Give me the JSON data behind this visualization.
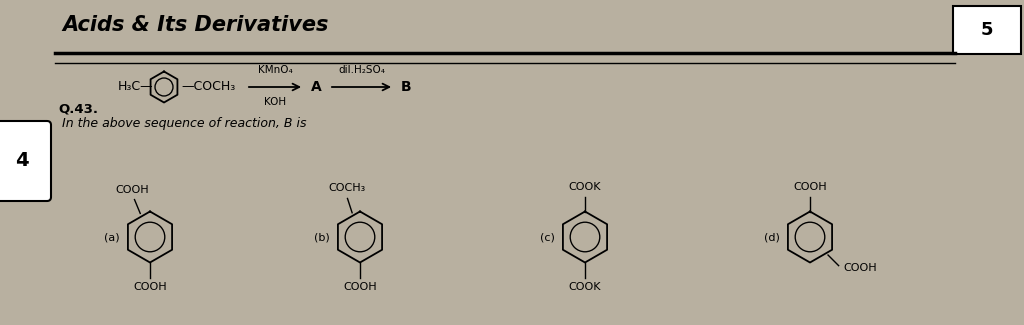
{
  "title": "Acids & Its Derivatives",
  "page_num": "5",
  "chapter_num": "4",
  "bg_outer": "#b8b0a0",
  "bg_page": "#d8d4cc",
  "arrow1_label_top": "KMnO₄",
  "arrow1_label_bot": "KOH",
  "mid_label": "A",
  "arrow2_label": "dil.H₂SO₄",
  "end_label": "B",
  "question_desc": "In the above sequence of reaction, B is",
  "options": [
    "(a)",
    "(b)",
    "(c)",
    "(d)"
  ],
  "option_a_top": "COOH",
  "option_a_bot": "COOH",
  "option_b_top": "COCH₃",
  "option_b_bot": "COOH",
  "option_c_top": "COOK",
  "option_c_bot": "COOK",
  "option_d_top": "COOH",
  "option_d_bot_right": "COOH"
}
